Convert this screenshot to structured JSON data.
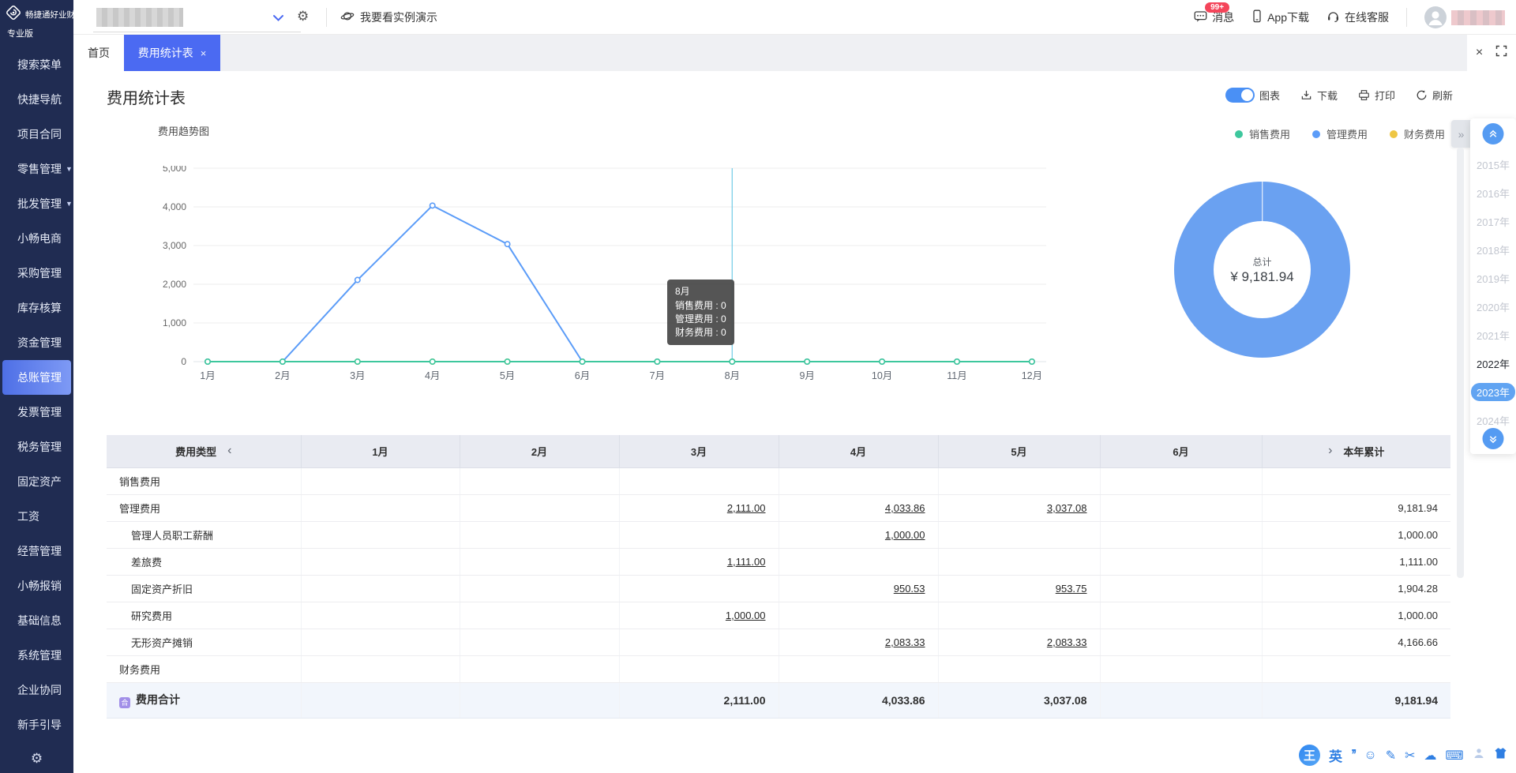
{
  "brand": {
    "name": "畅捷通好业财",
    "edition": "专业版"
  },
  "header": {
    "demo_text": "我要看实例演示",
    "messages_label": "消息",
    "messages_badge": "99+",
    "app_download_label": "App下载",
    "online_support_label": "在线客服"
  },
  "tabs": {
    "home": "首页",
    "active": "费用统计表",
    "close": "×"
  },
  "sidebar": {
    "items": [
      {
        "label": "搜索菜单"
      },
      {
        "label": "快捷导航"
      },
      {
        "label": "项目合同"
      },
      {
        "label": "零售管理",
        "arrow": true
      },
      {
        "label": "批发管理",
        "arrow": true
      },
      {
        "label": "小畅电商"
      },
      {
        "label": "采购管理"
      },
      {
        "label": "库存核算"
      },
      {
        "label": "资金管理"
      },
      {
        "label": "总账管理",
        "active": true
      },
      {
        "label": "发票管理"
      },
      {
        "label": "税务管理"
      },
      {
        "label": "固定资产"
      },
      {
        "label": "工资"
      },
      {
        "label": "经营管理"
      },
      {
        "label": "小畅报销"
      },
      {
        "label": "基础信息"
      },
      {
        "label": "系统管理"
      },
      {
        "label": "企业协同"
      },
      {
        "label": "新手引导"
      }
    ]
  },
  "page": {
    "title": "费用统计表"
  },
  "toolbar": {
    "chart_toggle": "图表",
    "download": "下载",
    "print": "打印",
    "refresh": "刷新"
  },
  "chart_data": {
    "type": "line",
    "title": "费用趋势图",
    "categories": [
      "1月",
      "2月",
      "3月",
      "4月",
      "5月",
      "6月",
      "7月",
      "8月",
      "9月",
      "10月",
      "11月",
      "12月"
    ],
    "series": [
      {
        "name": "销售费用",
        "color": "#3dc79d",
        "values": [
          0,
          0,
          0,
          0,
          0,
          0,
          0,
          0,
          0,
          0,
          0,
          0
        ]
      },
      {
        "name": "管理费用",
        "color": "#5b9cf8",
        "values": [
          0,
          0,
          2111,
          4033.86,
          3037.08,
          0,
          0,
          0,
          0,
          0,
          0,
          0
        ]
      },
      {
        "name": "财务费用",
        "color": "#eec643",
        "values": [
          0,
          0,
          0,
          0,
          0,
          0,
          0,
          0,
          0,
          0,
          0,
          0
        ]
      }
    ],
    "ylim": [
      0,
      5000
    ],
    "ytick_labels": [
      "0",
      "1,000",
      "2,000",
      "3,000",
      "4,000",
      "5,000"
    ],
    "grid": true,
    "legend_position": "top-right",
    "crosshair_index": 7
  },
  "tooltip": {
    "title": "8月",
    "lines": [
      "销售费用 : 0",
      "管理费用 : 0",
      "财务费用 : 0"
    ]
  },
  "donut_chart": {
    "type": "pie",
    "center_label": "总计",
    "center_value": "¥ 9,181.94",
    "total": 9181.94,
    "slices": [
      {
        "name": "管理费用",
        "value": 9181.94,
        "color": "#6aa1f1"
      }
    ]
  },
  "year_panel": {
    "years": [
      "2015年",
      "2016年",
      "2017年",
      "2018年",
      "2019年",
      "2020年",
      "2021年",
      "2022年",
      "2023年",
      "2024年"
    ],
    "selected": "2023年",
    "dark": "2022年"
  },
  "table": {
    "columns": [
      "费用类型",
      "1月",
      "2月",
      "3月",
      "4月",
      "5月",
      "6月",
      "本年累计"
    ],
    "prev_chevron": "‹",
    "next_chevron": "›",
    "rows": [
      {
        "label": "销售费用",
        "indent": 0,
        "cells": [
          "",
          "",
          "",
          "",
          "",
          ""
        ],
        "total": ""
      },
      {
        "label": "管理费用",
        "indent": 0,
        "cells": [
          "",
          "",
          {
            "v": "2,111.00",
            "link": true
          },
          {
            "v": "4,033.86",
            "link": true
          },
          {
            "v": "3,037.08",
            "link": true
          },
          ""
        ],
        "total": "9,181.94"
      },
      {
        "label": "管理人员职工薪酬",
        "indent": 1,
        "cells": [
          "",
          "",
          "",
          {
            "v": "1,000.00",
            "link": true
          },
          "",
          ""
        ],
        "total": "1,000.00"
      },
      {
        "label": "差旅费",
        "indent": 1,
        "cells": [
          "",
          "",
          {
            "v": "1,111.00",
            "link": true
          },
          "",
          "",
          ""
        ],
        "total": "1,111.00"
      },
      {
        "label": "固定资产折旧",
        "indent": 1,
        "cells": [
          "",
          "",
          "",
          {
            "v": "950.53",
            "link": true
          },
          {
            "v": "953.75",
            "link": true
          },
          ""
        ],
        "total": "1,904.28"
      },
      {
        "label": "研究费用",
        "indent": 1,
        "cells": [
          "",
          "",
          {
            "v": "1,000.00",
            "link": true
          },
          "",
          "",
          ""
        ],
        "total": "1,000.00"
      },
      {
        "label": "无形资产摊销",
        "indent": 1,
        "cells": [
          "",
          "",
          "",
          {
            "v": "2,083.33",
            "link": true
          },
          {
            "v": "2,083.33",
            "link": true
          },
          ""
        ],
        "total": "4,166.66"
      },
      {
        "label": "财务费用",
        "indent": 0,
        "cells": [
          "",
          "",
          "",
          "",
          "",
          ""
        ],
        "total": ""
      }
    ],
    "footer": {
      "label": "费用合计",
      "cells": [
        "",
        "",
        "2,111.00",
        "4,033.86",
        "3,037.08",
        ""
      ],
      "total": "9,181.94"
    }
  },
  "ime": {
    "han": "王",
    "lang": "英"
  }
}
